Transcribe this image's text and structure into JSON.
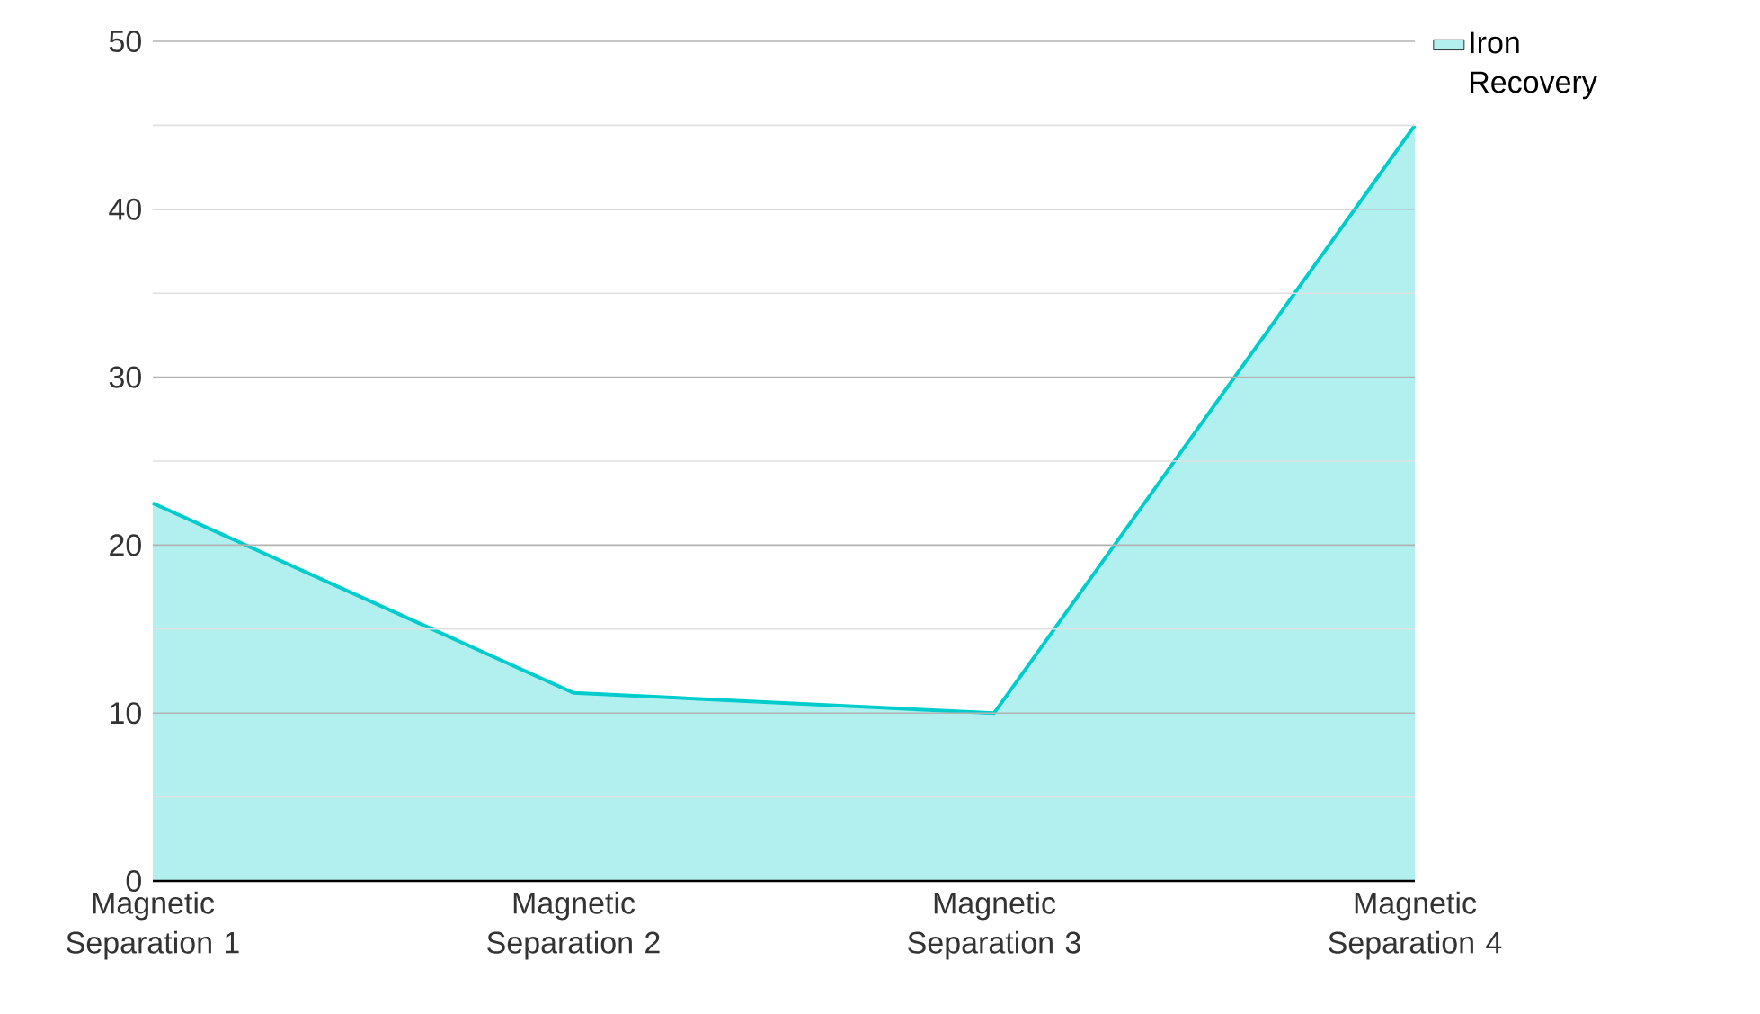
{
  "chart_data": {
    "type": "area",
    "categories": [
      "Magnetic Separation 1",
      "Magnetic Separation 2",
      "Magnetic Separation 3",
      "Magnetic Separation 4"
    ],
    "series": [
      {
        "name": "Iron Recovery",
        "color": "#00cccc",
        "values": [
          22.5,
          11.2,
          10,
          45
        ]
      }
    ],
    "ylim": [
      0,
      50
    ],
    "yticks": [
      0,
      10,
      20,
      30,
      40,
      50
    ],
    "grid": "y",
    "legend": "top right"
  }
}
